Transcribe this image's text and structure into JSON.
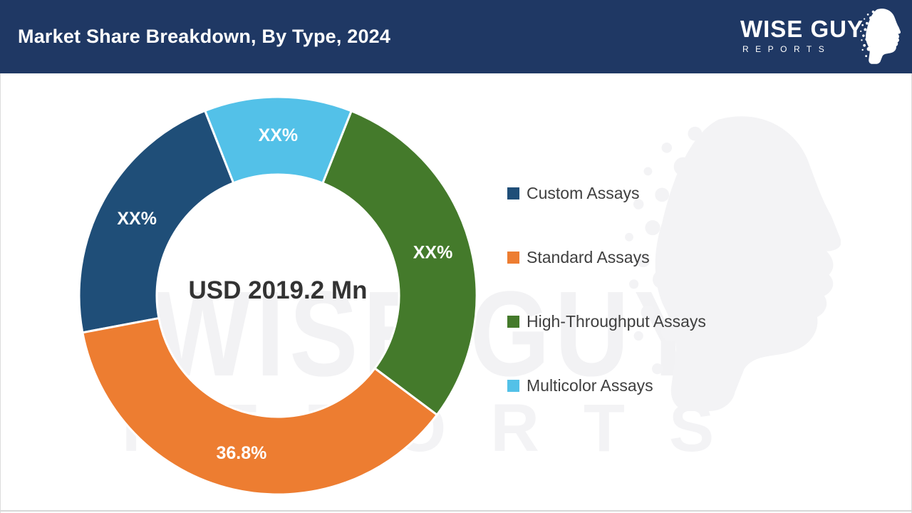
{
  "header": {
    "title": "Market Share Breakdown, By Type, 2024",
    "logo": {
      "line1": "WISE GUY",
      "line2": "REPORTS"
    }
  },
  "watermark": {
    "line1": "WISE GUY",
    "line2": "REPORTS"
  },
  "chart_data": {
    "type": "pie",
    "subtype": "donut",
    "title": "Market Share Breakdown, By Type, 2024",
    "center_label": "USD 2019.2 Mn",
    "legend_position": "right",
    "start_angle_deg": -21.5,
    "direction": "counterclockwise",
    "inner_radius_ratio": 0.61,
    "segments": [
      {
        "label": "Custom Assays",
        "display_value": "XX%",
        "value": 22.0,
        "color": "#1f4e78"
      },
      {
        "label": "Standard Assays",
        "display_value": "36.8%",
        "value": 36.8,
        "color": "#ed7d31"
      },
      {
        "label": "High-Throughput Assays",
        "display_value": "XX%",
        "value": 29.2,
        "color": "#447a2b"
      },
      {
        "label": "Multicolor Assays",
        "display_value": "XX%",
        "value": 12.0,
        "color": "#53c1e8"
      }
    ]
  },
  "colors": {
    "header_bg": "#1f3864",
    "title_text": "#ffffff",
    "center_text": "#333333",
    "legend_text": "#3f3f3f",
    "segment_label_text": "#ffffff",
    "watermark_tint": "#f3f3f5",
    "border": "#d8d8d8"
  }
}
